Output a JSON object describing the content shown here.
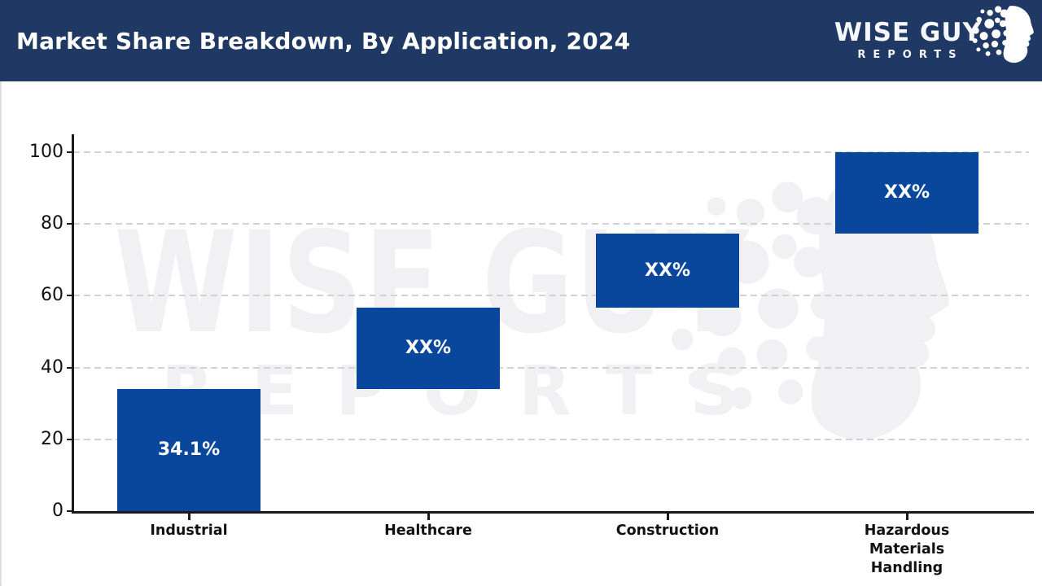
{
  "header": {
    "title": "Market Share Breakdown, By Application, 2024",
    "bg_color": "#1f3864",
    "logo": {
      "wordmark": "WISE GUY",
      "subtext": "REPORTS",
      "head_icon": "dotted-head-profile"
    }
  },
  "watermark": {
    "wordmark": "WISE GUY",
    "subtext": "REPORTS",
    "head_icon": "dotted-head-profile",
    "color": "#f1f1f3"
  },
  "chart_data": {
    "type": "bar",
    "subtype": "floating-segment-waterfall",
    "title": "Market Share Breakdown, By Application, 2024",
    "categories": [
      "Industrial",
      "Healthcare",
      "Construction",
      "Hazardous Materials Handling"
    ],
    "series": [
      {
        "name": "Market share (%)",
        "segments": [
          {
            "category": "Industrial",
            "from": 0,
            "to": 34.1,
            "label": "34.1%"
          },
          {
            "category": "Healthcare",
            "from": 34.1,
            "to": 56.7,
            "label": "XX%"
          },
          {
            "category": "Construction",
            "from": 56.7,
            "to": 77.4,
            "label": "XX%"
          },
          {
            "category": "Hazardous Materials Handling",
            "from": 77.4,
            "to": 100,
            "label": "XX%"
          }
        ]
      }
    ],
    "xlabel": "",
    "ylabel": "",
    "ylim": [
      0,
      105
    ],
    "y_ticks": [
      0,
      20,
      40,
      60,
      80,
      100
    ],
    "grid": "horizontal-dashed",
    "legend": "none",
    "colors": {
      "bar": "#09479c",
      "bar_label": "#ffffff",
      "grid": "#d2d2d2",
      "axis": "#1a1a1a",
      "tick_label": "#111111",
      "category_label": "#111111"
    }
  }
}
